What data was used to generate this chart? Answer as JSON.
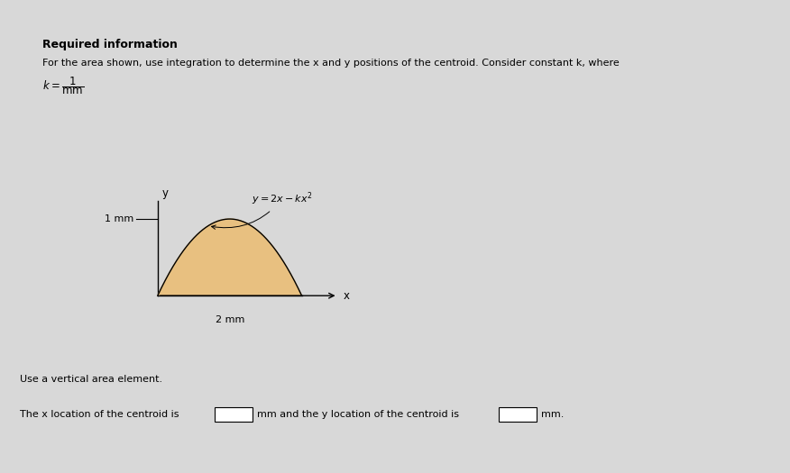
{
  "bg_color": "#d8d8d8",
  "box_bg": "#f5f5f0",
  "box_edge": "#aaaaaa",
  "title_text": "Required information",
  "desc_line1": "For the area shown, use integration to determine the x and y positions of the centroid. Consider constant k, where",
  "curve_label": "y = 2x – kx²",
  "x_label": "x",
  "y_label": "y",
  "x_dim": "2 mm",
  "y_dim": "1 mm",
  "fill_color": "#e8c080",
  "use_element_text": "Use a vertical area element.",
  "answer_line": "The x location of the centroid is",
  "answer_mid": "mm and the y location of the centroid is",
  "answer_end": "mm."
}
